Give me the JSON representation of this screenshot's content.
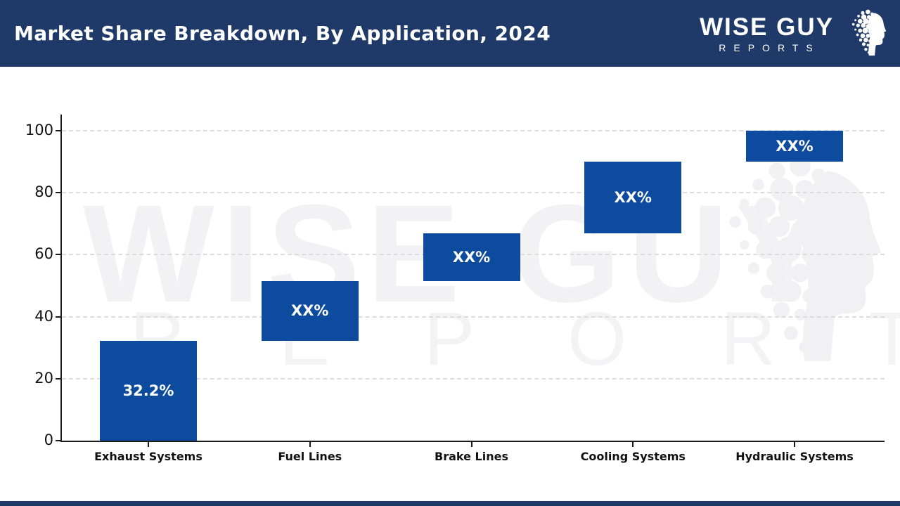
{
  "header": {
    "title": "Market Share Breakdown, By Application, 2024",
    "logo": {
      "line1": "WISE GUY",
      "line2": "REPORTS"
    }
  },
  "watermark": {
    "line1": "WISE GUY",
    "line2": "R E P O R T S"
  },
  "footer": {
    "strip": true
  },
  "colors": {
    "header_bg": "#1f3a68",
    "bar": "#0d4b9f",
    "grid": "#dcdcdc",
    "axis": "#1a1a1a",
    "value_text": "#ffffff",
    "watermark": "#f2f2f4"
  },
  "chart_data": {
    "type": "bar",
    "subtype": "waterfall",
    "title": "Market Share Breakdown, By Application, 2024",
    "xlabel": "",
    "ylabel": "",
    "categories": [
      "Exhaust Systems",
      "Fuel Lines",
      "Brake Lines",
      "Cooling Systems",
      "Hydraulic Systems"
    ],
    "segments": [
      {
        "category": "Exhaust Systems",
        "start": 0,
        "end": 32.2,
        "label": "32.2%"
      },
      {
        "category": "Fuel Lines",
        "start": 32.2,
        "end": 51.5,
        "label": "XX%"
      },
      {
        "category": "Brake Lines",
        "start": 51.5,
        "end": 66.8,
        "label": "XX%"
      },
      {
        "category": "Cooling Systems",
        "start": 66.8,
        "end": 90.0,
        "label": "XX%"
      },
      {
        "category": "Hydraulic Systems",
        "start": 90.0,
        "end": 100.0,
        "label": "XX%"
      }
    ],
    "yticks": [
      0,
      20,
      40,
      60,
      80,
      100
    ],
    "ylim": [
      0,
      105
    ],
    "grid": "horizontal-dashed",
    "legend": "none"
  }
}
